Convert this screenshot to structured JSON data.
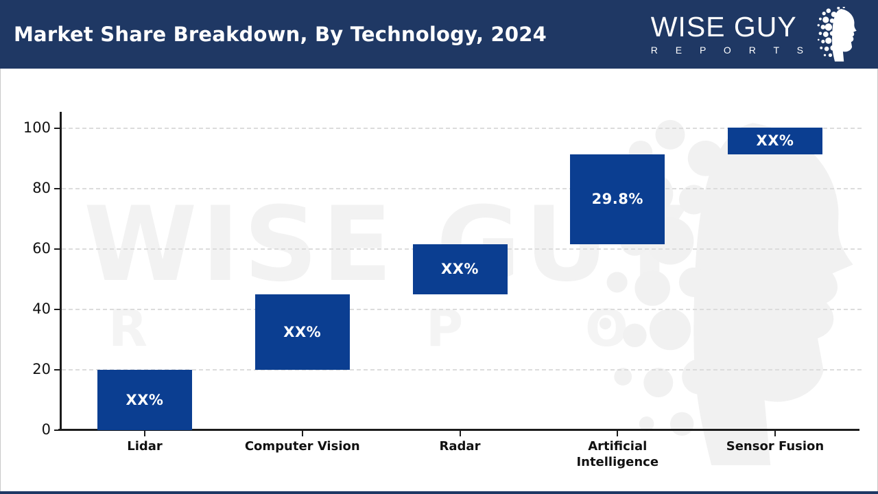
{
  "header": {
    "title": "Market Share Breakdown, By Technology, 2024",
    "logo": {
      "line1": "WISE GUY",
      "line2": "R E P O R T S"
    }
  },
  "watermark": {
    "line1": "WISE GUY",
    "line2": "R E P O R T S"
  },
  "footer": {},
  "chart_data": {
    "type": "bar",
    "subtype": "waterfall-floating-bars",
    "title": "Market Share Breakdown, By Technology, 2024",
    "categories": [
      "Lidar",
      "Computer Vision",
      "Radar",
      "Artificial Intelligence",
      "Sensor Fusion"
    ],
    "bars": [
      {
        "category": "Lidar",
        "start": 0,
        "end": 20,
        "value": 20,
        "label": "XX%"
      },
      {
        "category": "Computer Vision",
        "start": 20,
        "end": 45,
        "value": 25,
        "label": "XX%"
      },
      {
        "category": "Radar",
        "start": 45,
        "end": 61.6,
        "value": 16.6,
        "label": "XX%"
      },
      {
        "category": "Artificial Intelligence",
        "start": 61.6,
        "end": 91.4,
        "value": 29.8,
        "label": "29.8%"
      },
      {
        "category": "Sensor Fusion",
        "start": 91.4,
        "end": 100.2,
        "value": 8.8,
        "label": "XX%"
      }
    ],
    "y_ticks": [
      0,
      20,
      40,
      60,
      80,
      100
    ],
    "ylim": [
      0,
      105
    ],
    "xlabel": "",
    "ylabel": "",
    "grid": "horizontal dashed",
    "legend": "none",
    "bar_color": "#0b3e91",
    "bar_label_color": "#ffffff"
  },
  "colors": {
    "header_bg": "#1f3864",
    "bar": "#0b3e91",
    "axis": "#1c1c1c",
    "gridline": "#dcdcdc",
    "watermark": "#f2f2f2",
    "title_text": "#ffffff"
  }
}
